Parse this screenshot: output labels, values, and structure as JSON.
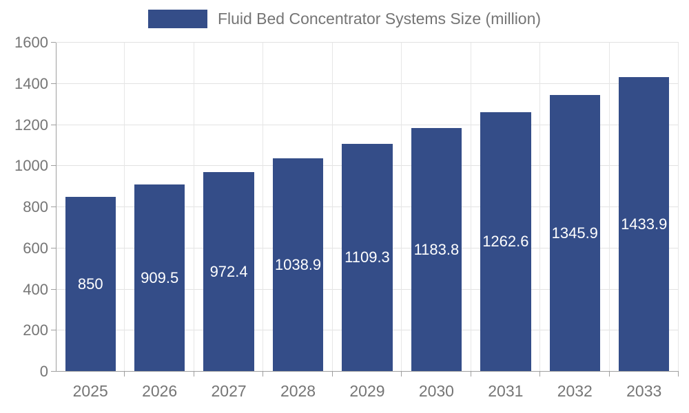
{
  "chart_data": {
    "type": "bar",
    "title": "Fluid Bed Concentrator Systems Size (million)",
    "categories": [
      "2025",
      "2026",
      "2027",
      "2028",
      "2029",
      "2030",
      "2031",
      "2032",
      "2033"
    ],
    "values": [
      850,
      909.5,
      972.4,
      1038.9,
      1109.3,
      1183.8,
      1262.6,
      1345.9,
      1433.9
    ],
    "xlabel": "",
    "ylabel": "",
    "ylim": [
      0,
      1600
    ],
    "ytick_step": 200,
    "grid": "on",
    "legend_position": "top-center",
    "bar_color": "#344d88",
    "label_color": "#ffffff",
    "tick_color": "#757575",
    "gridline_color": "#e2e2e2",
    "axis_color": "#9e9e9e"
  }
}
